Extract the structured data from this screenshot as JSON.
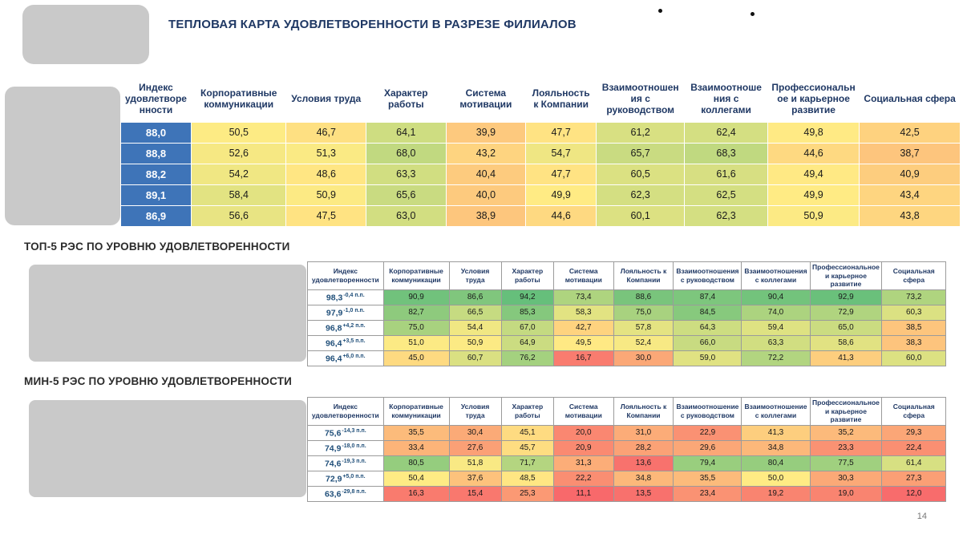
{
  "page": {
    "number": "14"
  },
  "heatmap_scale": {
    "low_color": "#F8696B",
    "mid_color": "#FFEB84",
    "high_color": "#63BE7B",
    "min": 11,
    "mid": 50,
    "max": 95,
    "index_bg": "#3E74B8"
  },
  "chart_data": [
    {
      "type": "heatmap",
      "title": "ТЕПЛОВАЯ КАРТА УДОВЛЕТВОРЕННОСТИ В РАЗРЕЗЕ ФИЛИАЛОВ",
      "columns": [
        "Индекс удовлетворенности",
        "Корпоративные коммуникации",
        "Условия труда",
        "Характер работы",
        "Система мотивации",
        "Лояльность к Компании",
        "Взаимоотношения с руководством",
        "Взаимоотношения с коллегами",
        "Профессиональное и карьерное развитие",
        "Социальная сфера"
      ],
      "rows": [
        {
          "index": "88,0",
          "values": [
            "50,5",
            "46,7",
            "64,1",
            "39,9",
            "47,7",
            "61,2",
            "62,4",
            "49,8",
            "42,5"
          ]
        },
        {
          "index": "88,8",
          "values": [
            "52,6",
            "51,3",
            "68,0",
            "43,2",
            "54,7",
            "65,7",
            "68,3",
            "44,6",
            "38,7"
          ]
        },
        {
          "index": "88,2",
          "values": [
            "54,2",
            "48,6",
            "63,3",
            "40,4",
            "47,7",
            "60,5",
            "61,6",
            "49,4",
            "40,9"
          ]
        },
        {
          "index": "89,1",
          "values": [
            "58,4",
            "50,9",
            "65,6",
            "40,0",
            "49,9",
            "62,3",
            "62,5",
            "49,9",
            "43,4"
          ]
        },
        {
          "index": "86,9",
          "values": [
            "56,6",
            "47,5",
            "63,0",
            "38,9",
            "44,6",
            "60,1",
            "62,3",
            "50,9",
            "43,8"
          ]
        }
      ]
    },
    {
      "type": "heatmap",
      "title": "ТОП-5 РЭС ПО УРОВНЮ УДОВЛЕТВОРЕННОСТИ",
      "columns": [
        "Индекс удовлетворенности",
        "Корпоративные коммуникации",
        "Условия труда",
        "Характер работы",
        "Система мотивации",
        "Лояльность к Компании",
        "Взаимоотношения с руководством",
        "Взаимоотношения с коллегами",
        "Профессиональное и карьерное развитие",
        "Социальная сфера"
      ],
      "rows": [
        {
          "index": "98,3",
          "delta": "-0,4 п.п.",
          "values": [
            "90,9",
            "86,6",
            "94,2",
            "73,4",
            "88,6",
            "87,4",
            "90,4",
            "92,9",
            "73,2"
          ]
        },
        {
          "index": "97,9",
          "delta": "-1,0 п.п.",
          "values": [
            "82,7",
            "66,5",
            "85,3",
            "58,3",
            "75,0",
            "84,5",
            "74,0",
            "72,9",
            "60,3"
          ]
        },
        {
          "index": "96,8",
          "delta": "+4,2 п.п.",
          "values": [
            "75,0",
            "54,4",
            "67,0",
            "42,7",
            "57,8",
            "64,3",
            "59,4",
            "65,0",
            "38,5"
          ]
        },
        {
          "index": "96,4",
          "delta": "+3,5 п.п.",
          "values": [
            "51,0",
            "50,9",
            "64,9",
            "49,5",
            "52,4",
            "66,0",
            "63,3",
            "58,6",
            "38,3"
          ]
        },
        {
          "index": "96,4",
          "delta": "+6,0 п.п.",
          "values": [
            "45,0",
            "60,7",
            "76,2",
            "16,7",
            "30,0",
            "59,0",
            "72,2",
            "41,3",
            "60,0"
          ]
        }
      ]
    },
    {
      "type": "heatmap",
      "title": "МИН-5 РЭС ПО УРОВНЮ УДОВЛЕТВОРЕННОСТИ",
      "columns": [
        "Индекс удовлетворенности",
        "Корпоративные коммуникации",
        "Условия труда",
        "Характер работы",
        "Система мотивации",
        "Лояльность к Компании",
        "Взаимоотношение с руководством",
        "Взаимоотношение с коллегами",
        "Профессиональное и карьерное развитие",
        "Социальная сфера"
      ],
      "rows": [
        {
          "index": "75,6",
          "delta": "-14,3 п.п.",
          "values": [
            "35,5",
            "30,4",
            "45,1",
            "20,0",
            "31,0",
            "22,9",
            "41,3",
            "35,2",
            "29,3"
          ]
        },
        {
          "index": "74,9",
          "delta": "-18,0 п.п.",
          "values": [
            "33,4",
            "27,6",
            "45,7",
            "20,9",
            "28,2",
            "29,6",
            "34,8",
            "23,3",
            "22,4"
          ]
        },
        {
          "index": "74,6",
          "delta": "-19,3 п.п.",
          "values": [
            "80,5",
            "51,8",
            "71,7",
            "31,3",
            "13,6",
            "79,4",
            "80,4",
            "77,5",
            "61,4"
          ]
        },
        {
          "index": "72,9",
          "delta": "+5,0 п.п.",
          "values": [
            "50,4",
            "37,6",
            "48,5",
            "22,2",
            "34,8",
            "35,5",
            "50,0",
            "30,3",
            "27,3"
          ]
        },
        {
          "index": "63,6",
          "delta": "-29,8 п.п.",
          "values": [
            "16,3",
            "15,4",
            "25,3",
            "11,1",
            "13,5",
            "23,4",
            "19,2",
            "19,0",
            "12,0"
          ]
        }
      ]
    }
  ]
}
